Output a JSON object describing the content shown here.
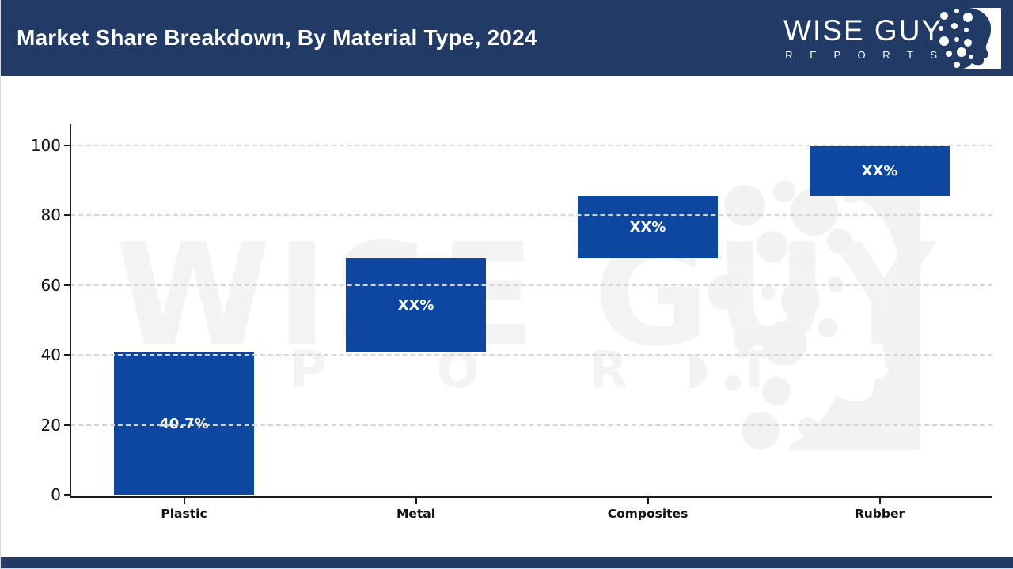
{
  "header": {
    "title": "Market Share Breakdown, By Material Type, 2024",
    "logo": {
      "main": "WISE GUY",
      "sub": "R E P O R T S",
      "head_icon": "dotted-face-profile"
    }
  },
  "watermark": {
    "main": "WISE GUY",
    "sub": "P O R T S",
    "head_icon": "dotted-face-profile"
  },
  "chart_data": {
    "type": "bar",
    "subtype": "waterfall",
    "title": "Market Share Breakdown, By Material Type, 2024",
    "xlabel": "",
    "ylabel": "",
    "categories": [
      "Plastic",
      "Metal",
      "Composites",
      "Rubber"
    ],
    "segments": [
      {
        "category": "Plastic",
        "start": 0,
        "end": 40.7,
        "label": "40.7%",
        "masked": false
      },
      {
        "category": "Metal",
        "start": 40.7,
        "end": 67.7,
        "label": "XX%",
        "masked": true
      },
      {
        "category": "Composites",
        "start": 67.7,
        "end": 85.5,
        "label": "XX%",
        "masked": true
      },
      {
        "category": "Rubber",
        "start": 85.5,
        "end": 99.8,
        "label": "XX%",
        "masked": true
      }
    ],
    "yticks": [
      0,
      20,
      40,
      60,
      80,
      100
    ],
    "ylim": [
      0,
      106
    ],
    "grid": "horizontal-dashed",
    "legend": "none",
    "colors": {
      "bar": "#0d47a1",
      "bar_label": "#ffffff",
      "header_bg": "#223a66",
      "gridline": "#d6d6d6",
      "axis": "#1a1a1a",
      "watermark": "#f3f3f3"
    }
  }
}
